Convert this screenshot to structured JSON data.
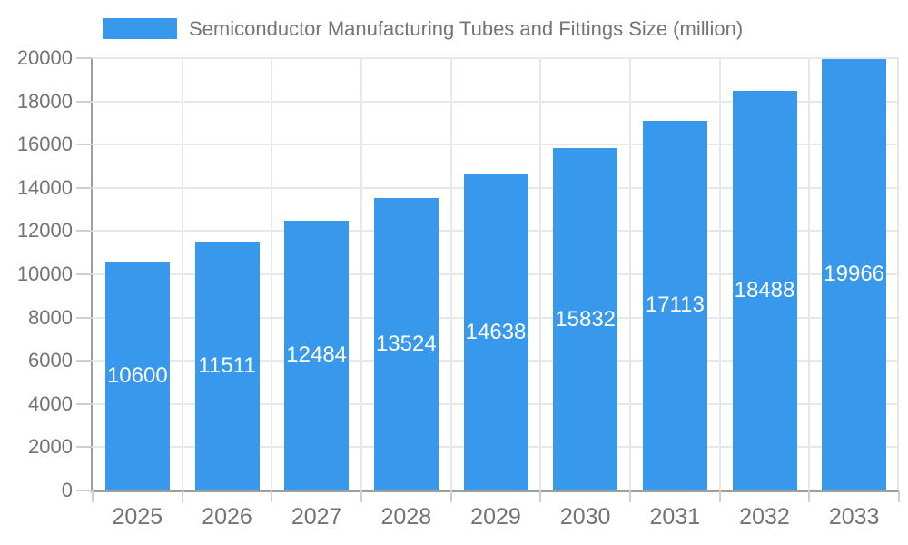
{
  "chart_data": {
    "type": "bar",
    "title": "Semiconductor Manufacturing Tubes and Fittings Size (million)",
    "categories": [
      "2025",
      "2026",
      "2027",
      "2028",
      "2029",
      "2030",
      "2031",
      "2032",
      "2033"
    ],
    "values": [
      10600,
      11511,
      12484,
      13524,
      14638,
      15832,
      17113,
      18488,
      19966
    ],
    "xlabel": "",
    "ylabel": "",
    "ylim": [
      0,
      20000
    ],
    "ytick_step": 2000,
    "ytick_labels": [
      "0",
      "2000",
      "4000",
      "6000",
      "8000",
      "10000",
      "12000",
      "14000",
      "16000",
      "18000",
      "20000"
    ],
    "grid": true,
    "legend_position": "top",
    "bar_label_position": "inside-center",
    "colors": {
      "bar": "#3899EC",
      "bar_label": "#FFFFFF",
      "grid": "#E8E8E8",
      "axis_line": "#9E9E9E",
      "tick": "#CFCFCF",
      "axis_text": "#737373",
      "title_text": "#757575",
      "background": "#FFFFFF"
    }
  }
}
